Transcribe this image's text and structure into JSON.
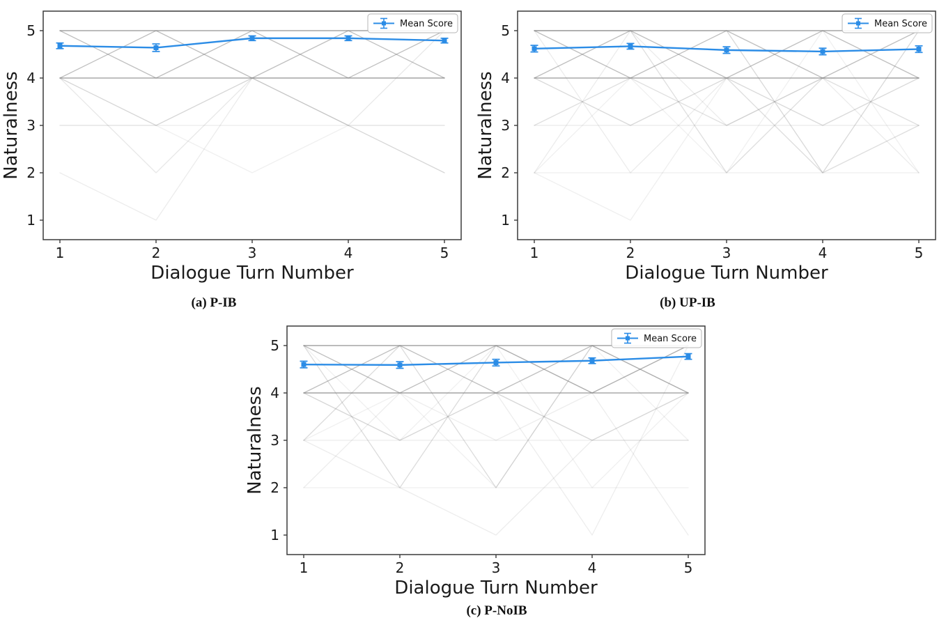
{
  "page": {
    "background": "#ffffff"
  },
  "colors": {
    "mean_line": "#2b8ce6",
    "individual_line": "#808080",
    "spine": "#3a3a3a",
    "tick_text": "#1a1a1a",
    "label_text": "#1a1a1a",
    "legend_border": "#b5b5b5",
    "legend_bg": "#ffffff"
  },
  "legend": {
    "label": "Mean Score",
    "position": "top-right",
    "marker": "square-with-errorbar"
  },
  "axes": {
    "xlabel": "Dialogue Turn Number",
    "ylabel": "Naturalness",
    "x_ticks": [
      "1",
      "2",
      "3",
      "4",
      "5"
    ],
    "y_ticks": [
      "5",
      "4",
      "3",
      "2",
      "1"
    ],
    "xlim": [
      0.8,
      5.2
    ],
    "ylim": [
      0.55,
      5.45
    ],
    "grid": false
  },
  "chart_data": [
    {
      "id": "a",
      "type": "line",
      "caption": "(a) P-IB",
      "x": [
        1,
        2,
        3,
        4,
        5
      ],
      "mean_series": {
        "name": "Mean Score",
        "values": [
          4.68,
          4.64,
          4.84,
          4.84,
          4.79
        ],
        "errors": [
          0.06,
          0.08,
          0.05,
          0.05,
          0.05
        ]
      },
      "individual_series": [
        {
          "values": [
            5,
            5,
            5,
            5,
            5
          ],
          "opacity": 0.85
        },
        {
          "values": [
            4,
            4,
            4,
            4,
            4
          ],
          "opacity": 0.8
        },
        {
          "values": [
            5,
            4,
            5,
            4,
            5
          ],
          "opacity": 0.5
        },
        {
          "values": [
            4,
            5,
            4,
            5,
            4
          ],
          "opacity": 0.5
        },
        {
          "values": [
            4,
            3,
            4,
            3,
            2
          ],
          "opacity": 0.32
        },
        {
          "values": [
            4,
            2,
            4,
            3,
            5
          ],
          "opacity": 0.18
        },
        {
          "values": [
            2,
            1,
            4,
            4,
            4
          ],
          "opacity": 0.15
        },
        {
          "values": [
            3,
            3,
            3,
            3,
            3
          ],
          "opacity": 0.15
        },
        {
          "values": [
            3,
            3,
            2,
            3,
            3
          ],
          "opacity": 0.12
        }
      ]
    },
    {
      "id": "b",
      "type": "line",
      "caption": "(b) UP-IB",
      "x": [
        1,
        2,
        3,
        4,
        5
      ],
      "mean_series": {
        "name": "Mean Score",
        "values": [
          4.62,
          4.67,
          4.59,
          4.56,
          4.61
        ],
        "errors": [
          0.07,
          0.06,
          0.07,
          0.07,
          0.07
        ]
      },
      "individual_series": [
        {
          "values": [
            5,
            5,
            5,
            5,
            5
          ],
          "opacity": 0.85
        },
        {
          "values": [
            4,
            4,
            4,
            4,
            4
          ],
          "opacity": 0.8
        },
        {
          "values": [
            5,
            4,
            5,
            4,
            5
          ],
          "opacity": 0.5
        },
        {
          "values": [
            4,
            5,
            4,
            5,
            4
          ],
          "opacity": 0.5
        },
        {
          "values": [
            4,
            3,
            4,
            3,
            4
          ],
          "opacity": 0.3
        },
        {
          "values": [
            3,
            4,
            3,
            4,
            3
          ],
          "opacity": 0.25
        },
        {
          "values": [
            5,
            5,
            5,
            2,
            5
          ],
          "opacity": 0.3
        },
        {
          "values": [
            5,
            5,
            2,
            4,
            4
          ],
          "opacity": 0.25
        },
        {
          "values": [
            3,
            3,
            3,
            3,
            3
          ],
          "opacity": 0.16
        },
        {
          "values": [
            2,
            2,
            2,
            2,
            2
          ],
          "opacity": 0.14
        },
        {
          "values": [
            5,
            2,
            4,
            2,
            3
          ],
          "opacity": 0.15
        },
        {
          "values": [
            2,
            5,
            3,
            4,
            2
          ],
          "opacity": 0.15
        },
        {
          "values": [
            2,
            1,
            4,
            2,
            3
          ],
          "opacity": 0.13
        },
        {
          "values": [
            2,
            4,
            2,
            5,
            2
          ],
          "opacity": 0.12
        }
      ]
    },
    {
      "id": "c",
      "type": "line",
      "caption": "(c) P-NoIB",
      "x": [
        1,
        2,
        3,
        4,
        5
      ],
      "mean_series": {
        "name": "Mean Score",
        "values": [
          4.6,
          4.59,
          4.64,
          4.68,
          4.77
        ],
        "errors": [
          0.07,
          0.07,
          0.07,
          0.06,
          0.06
        ]
      },
      "individual_series": [
        {
          "values": [
            5,
            5,
            5,
            5,
            5
          ],
          "opacity": 0.85
        },
        {
          "values": [
            4,
            4,
            4,
            4,
            4
          ],
          "opacity": 0.8
        },
        {
          "values": [
            5,
            4,
            5,
            4,
            5
          ],
          "opacity": 0.5
        },
        {
          "values": [
            4,
            5,
            4,
            5,
            4
          ],
          "opacity": 0.5
        },
        {
          "values": [
            4,
            3,
            4,
            3,
            4
          ],
          "opacity": 0.32
        },
        {
          "values": [
            3,
            5,
            2,
            5,
            4
          ],
          "opacity": 0.28
        },
        {
          "values": [
            5,
            2,
            5,
            4,
            5
          ],
          "opacity": 0.28
        },
        {
          "values": [
            3,
            3,
            3,
            3,
            3
          ],
          "opacity": 0.15
        },
        {
          "values": [
            2,
            2,
            2,
            2,
            2
          ],
          "opacity": 0.13
        },
        {
          "values": [
            3,
            2,
            1,
            3,
            3
          ],
          "opacity": 0.15
        },
        {
          "values": [
            4,
            4,
            4,
            1,
            5
          ],
          "opacity": 0.14
        },
        {
          "values": [
            2,
            4,
            3,
            4,
            1
          ],
          "opacity": 0.14
        },
        {
          "values": [
            3,
            4,
            2,
            5,
            3
          ],
          "opacity": 0.12
        },
        {
          "values": [
            5,
            3,
            5,
            2,
            4
          ],
          "opacity": 0.12
        }
      ]
    }
  ]
}
